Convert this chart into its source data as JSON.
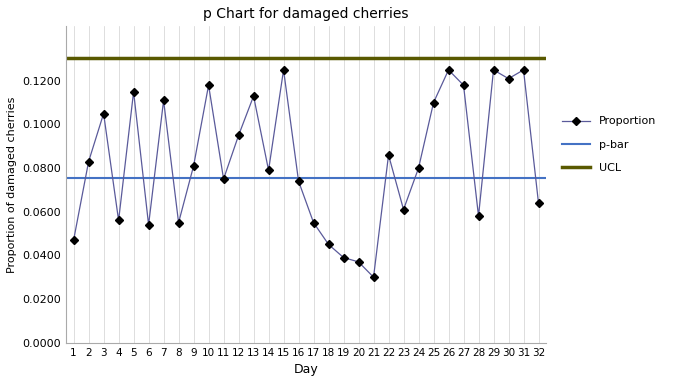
{
  "title": "p Chart for damaged cherries",
  "xlabel": "Day",
  "ylabel": "Proportion of damaged cherries",
  "days": [
    1,
    2,
    3,
    4,
    5,
    6,
    7,
    8,
    9,
    10,
    11,
    12,
    13,
    14,
    15,
    16,
    17,
    18,
    19,
    20,
    21,
    22,
    23,
    24,
    25,
    26,
    27,
    28,
    29,
    30,
    31,
    32
  ],
  "proportions": [
    0.047,
    0.083,
    0.105,
    0.056,
    0.115,
    0.054,
    0.111,
    0.055,
    0.081,
    0.118,
    0.075,
    0.095,
    0.113,
    0.079,
    0.125,
    0.074,
    0.055,
    0.045,
    0.039,
    0.037,
    0.03,
    0.086,
    0.061,
    0.08,
    0.11,
    0.125,
    0.118,
    0.058,
    0.125,
    0.121,
    0.125,
    0.064
  ],
  "p_bar": 0.0754,
  "ucl": 0.1303,
  "ylim": [
    0.0,
    0.145
  ],
  "ytick_step": 0.02,
  "line_color": "#5a5a9a",
  "p_bar_color": "#4472c4",
  "ucl_color": "#595900",
  "marker": "D",
  "marker_size": 4,
  "marker_color": "black",
  "legend_proportion": "Proportion",
  "legend_pbar": "p-bar",
  "legend_ucl": "UCL",
  "bg_color": "#ffffff",
  "grid_color": "#d0d0d0"
}
